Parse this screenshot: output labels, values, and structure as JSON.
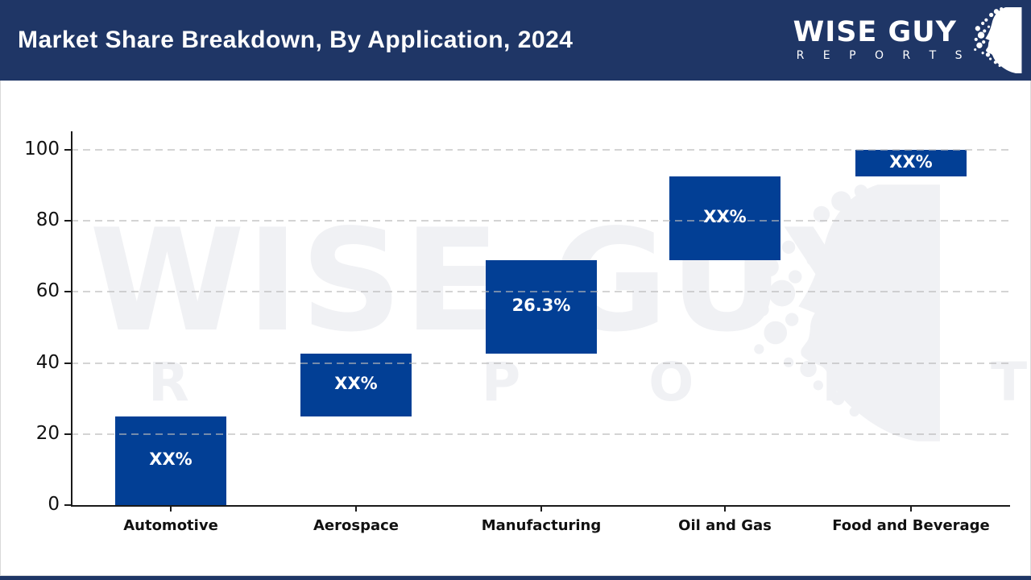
{
  "header": {
    "title": "Market Share Breakdown, By Application, 2024",
    "logo": {
      "line1": "WISE GUY",
      "line2": "R E P O R T S"
    }
  },
  "watermark": {
    "line1": "WISE GUY",
    "line2": "R E P O R T S"
  },
  "colors": {
    "header_bg": "#1f3666",
    "bar": "#023f95",
    "bar_label": "#ffffff",
    "watermark": "#f0f1f4",
    "axis": "#1a1a1a",
    "grid": "#bebebe"
  },
  "chart_data": {
    "type": "bar",
    "subtype": "waterfall",
    "title": "Market Share Breakdown, By Application, 2024",
    "xlabel": "",
    "ylabel": "",
    "ylim": [
      0,
      100
    ],
    "yticks": [
      0,
      20,
      40,
      60,
      80,
      100
    ],
    "grid": "horizontal-dashed",
    "legend": "none",
    "categories": [
      "Automotive",
      "Aerospace",
      "Manufacturing",
      "Oil and Gas",
      "Food and Beverage"
    ],
    "segments": [
      {
        "category": "Automotive",
        "start": 0,
        "end": 24.9,
        "value": 24.9,
        "label": "XX%"
      },
      {
        "category": "Aerospace",
        "start": 24.9,
        "end": 42.6,
        "value": 17.7,
        "label": "XX%"
      },
      {
        "category": "Manufacturing",
        "start": 42.6,
        "end": 68.9,
        "value": 26.3,
        "label": "26.3%"
      },
      {
        "category": "Oil and Gas",
        "start": 68.9,
        "end": 92.5,
        "value": 23.6,
        "label": "XX%"
      },
      {
        "category": "Food and Beverage",
        "start": 92.5,
        "end": 100,
        "value": 7.5,
        "label": "XX%"
      }
    ]
  }
}
